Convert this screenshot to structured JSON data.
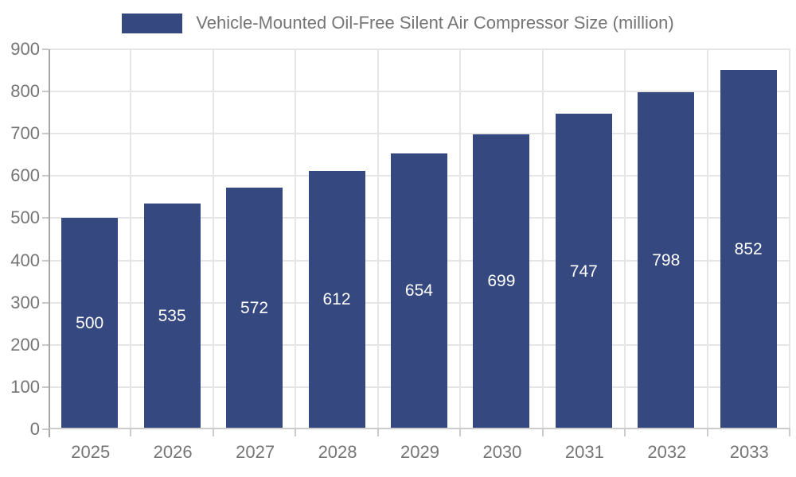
{
  "legend": {
    "label": "Vehicle-Mounted Oil-Free Silent Air Compressor Size (million)"
  },
  "colors": {
    "bar": "#35487f",
    "axis_text": "#757575",
    "value_label": "#ffffff",
    "gridline": "#e5e5e5",
    "y_axis_line": "#a6a6a6",
    "x_axis_line": "#cccccc"
  },
  "chart_data": {
    "type": "bar",
    "title": "Vehicle-Mounted Oil-Free Silent Air Compressor Size (million)",
    "categories": [
      "2025",
      "2026",
      "2027",
      "2028",
      "2029",
      "2030",
      "2031",
      "2032",
      "2033"
    ],
    "values": [
      500,
      535,
      572,
      612,
      654,
      699,
      747,
      798,
      852
    ],
    "xlabel": "",
    "ylabel": "",
    "ylim": [
      0,
      900
    ],
    "yticks": [
      0,
      100,
      200,
      300,
      400,
      500,
      600,
      700,
      800,
      900
    ],
    "grid": true,
    "legend_position": "top",
    "value_labels": "inside-center"
  }
}
